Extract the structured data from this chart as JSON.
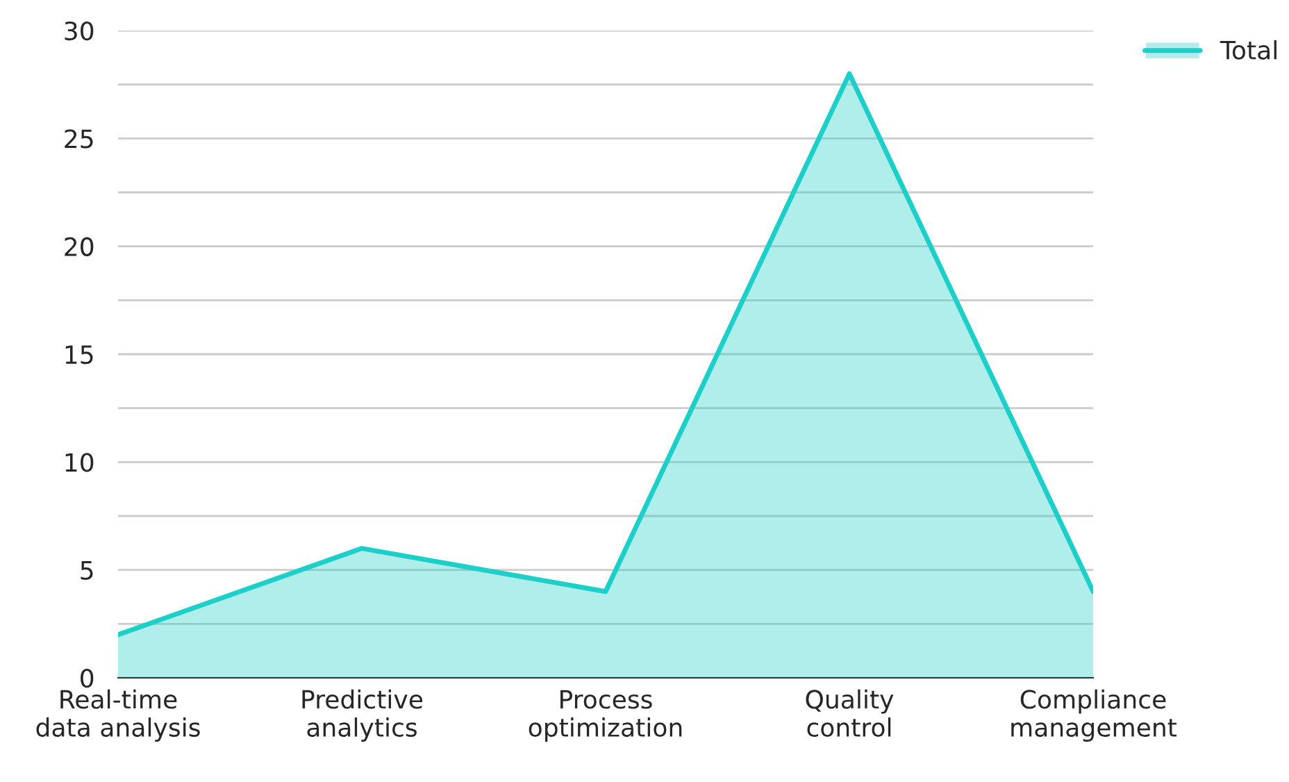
{
  "chart_data": {
    "type": "area",
    "categories": [
      "Real-time\ndata analysis",
      "Predictive\nanalytics",
      "Process\noptimization",
      "Quality\ncontrol",
      "Compliance\nmanagement"
    ],
    "series": [
      {
        "name": "Total",
        "color": "#1ccfc9",
        "values": [
          2,
          6,
          4,
          28,
          4
        ]
      }
    ],
    "ylim": [
      0,
      30
    ],
    "yticks": [
      0,
      {
        "value": 2.5,
        "label": null
      },
      5,
      {
        "value": 7.5,
        "label": null
      },
      10,
      {
        "value": 12.5,
        "label": null
      },
      15,
      {
        "value": 17.5,
        "label": null
      },
      20,
      {
        "value": 22.5,
        "label": null
      },
      25,
      {
        "value": 27.5,
        "label": null
      },
      30
    ],
    "grid": "y",
    "legend": "top right"
  }
}
